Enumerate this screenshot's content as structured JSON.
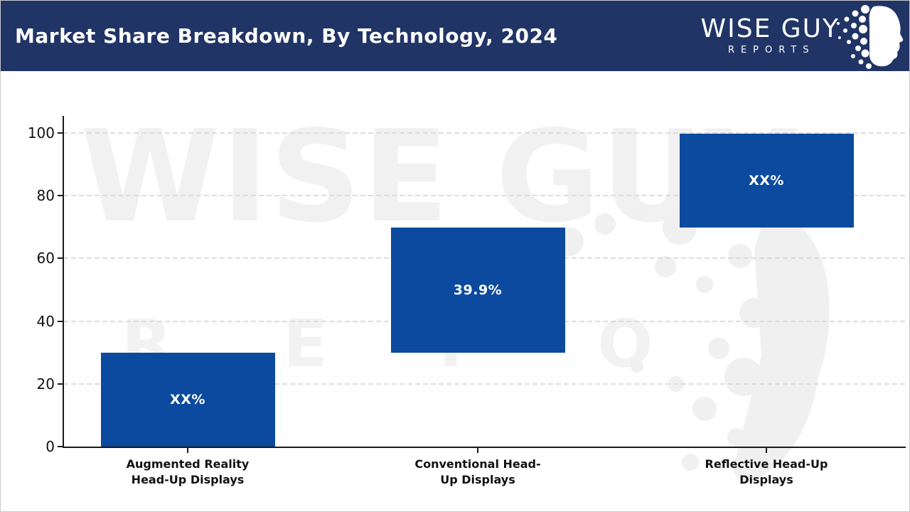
{
  "header": {
    "title": "Market Share Breakdown, By Technology, 2024",
    "bg_color": "#213466"
  },
  "logo": {
    "line1": "WISE GUY",
    "line2": "REPORTS"
  },
  "watermark": {
    "line1": "WISE GUY",
    "line2": "R E P O R T S"
  },
  "chart_data": {
    "type": "bar",
    "subtype": "floating-stacked-breakdown",
    "title": "Market Share Breakdown, By Technology, 2024",
    "categories": [
      [
        "Augmented Reality",
        "Head-Up Displays"
      ],
      [
        "Conventional Head-",
        "Up Displays"
      ],
      [
        "Reflective Head-Up",
        "Displays"
      ]
    ],
    "series": [
      {
        "name": "Market Share (%)",
        "ranges": [
          [
            0,
            30
          ],
          [
            30,
            69.9
          ],
          [
            69.9,
            99.8
          ]
        ],
        "labels": [
          "XX%",
          "39.9%",
          "XX%"
        ]
      }
    ],
    "yticks": [
      "0",
      "20",
      "40",
      "60",
      "80",
      "100"
    ],
    "ytick_values": [
      0,
      20,
      40,
      60,
      80,
      100
    ],
    "ylim": [
      0,
      105
    ],
    "xlabel": "",
    "ylabel": "",
    "bar_color": "#0b4a9f",
    "bar_label_color": "#ffffff",
    "grid": "horizontal-dashed",
    "grid_color": "#dcdcdc",
    "legend": "none"
  }
}
